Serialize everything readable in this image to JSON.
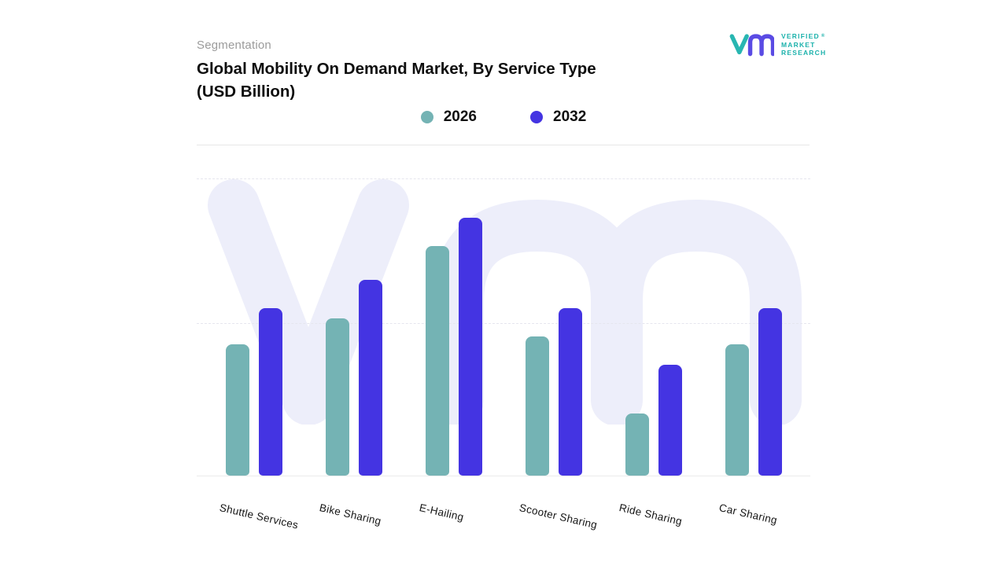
{
  "header": {
    "eyebrow": "Segmentation",
    "title_line1": "Global Mobility On Demand Market, By Service Type",
    "title_line2": "(USD Billion)"
  },
  "logo": {
    "line1": "VERIFIED",
    "line2": "MARKET",
    "line3": "RESEARCH",
    "registered": "®",
    "teal": "#1cb2ac",
    "purple": "#5a4be4"
  },
  "legend": {
    "items": [
      {
        "label": "2026",
        "color": "#74b3b4"
      },
      {
        "label": "2032",
        "color": "#4434e2"
      }
    ]
  },
  "colors": {
    "series_2026": "#74b3b4",
    "series_2032": "#4434e2",
    "watermark": "#edeefa",
    "gridline": "#e6e6ee"
  },
  "chart_data": {
    "type": "bar",
    "title": "Global Mobility On Demand Market, By Service Type (USD Billion)",
    "categories": [
      "Shuttle Services",
      "Bike Sharing",
      "E-Hailing",
      "Scooter Sharing",
      "Ride Sharing",
      "Car Sharing"
    ],
    "series": [
      {
        "name": "2026",
        "color": "#74b3b4",
        "values": [
          51,
          61,
          89,
          54,
          24,
          51
        ]
      },
      {
        "name": "2032",
        "color": "#4434e2",
        "values": [
          65,
          76,
          100,
          65,
          43,
          65
        ]
      }
    ],
    "xlabel": "",
    "ylabel": "USD Billion",
    "ylim": [
      0,
      116
    ],
    "value_units": "relative (tallest bar = 100; no numeric axis labels shown)",
    "grid": "horizontal-dashed",
    "legend_position": "top-center"
  }
}
